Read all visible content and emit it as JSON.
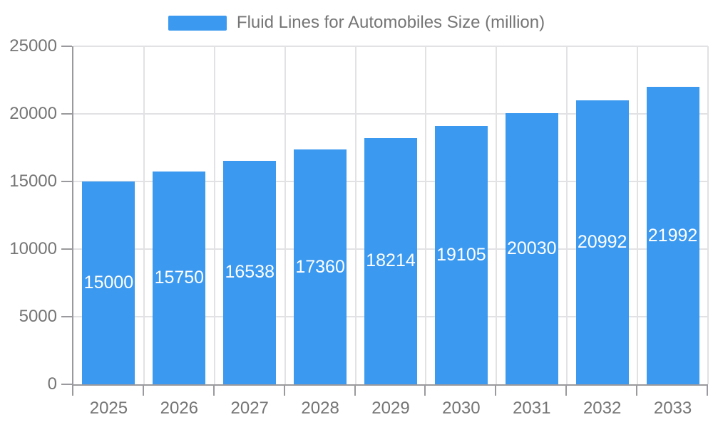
{
  "legend": {
    "label": "Fluid Lines for Automobiles Size (million)"
  },
  "chart_data": {
    "type": "bar",
    "title": "Fluid Lines for Automobiles Size (million)",
    "categories": [
      "2025",
      "2026",
      "2027",
      "2028",
      "2029",
      "2030",
      "2031",
      "2032",
      "2033"
    ],
    "series": [
      {
        "name": "Fluid Lines for Automobiles Size (million)",
        "values": [
          15000,
          15750,
          16538,
          17360,
          18214,
          19105,
          20030,
          20992,
          21992
        ]
      }
    ],
    "xlabel": "",
    "ylabel": "",
    "ylim": [
      0,
      25000
    ],
    "y_ticks": [
      0,
      5000,
      10000,
      15000,
      20000,
      25000
    ],
    "grid": true,
    "legend_position": "top-center",
    "data_labels_position": "inside-center",
    "colors": {
      "bar": "#3b99f0",
      "bar_label": "#ffffff",
      "axis_line": "#9a9a9e",
      "grid_line": "#e2e2e5",
      "text": "#757575",
      "background": "#ffffff"
    }
  }
}
